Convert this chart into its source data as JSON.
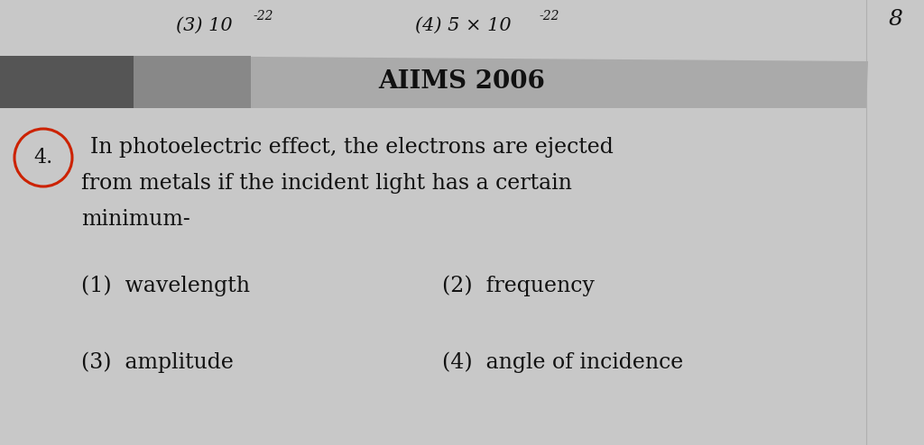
{
  "page_bg": "#c8c8c8",
  "header_text": "AIIMS 2006",
  "header_bg_dark": "#555555",
  "header_bg_mid": "#888888",
  "header_bg_light": "#aaaaaa",
  "header_text_color": "#111111",
  "top_opt3_base": "(3) 10",
  "top_opt3_sup": "⁲22",
  "top_opt4_base": "(4) 5 × 10",
  "top_opt4_sup": "⁲22",
  "q_number": "4.",
  "q_line1": "In photoelectric effect, the electrons are ejected",
  "q_line2": "from metals if the incident light has a certain",
  "q_line3": "minimum-",
  "opt1": "(1)  wavelength",
  "opt2": "(2)  frequency",
  "opt3": "(3)  amplitude",
  "opt4": "(4)  angle of incidence",
  "text_color": "#111111",
  "circle_color": "#cc2200",
  "right_bar_color": "#888888",
  "font_size_header": 20,
  "font_size_top": 15,
  "font_size_sup": 10,
  "font_size_q": 17,
  "font_size_opt": 17,
  "font_size_qnum": 16
}
